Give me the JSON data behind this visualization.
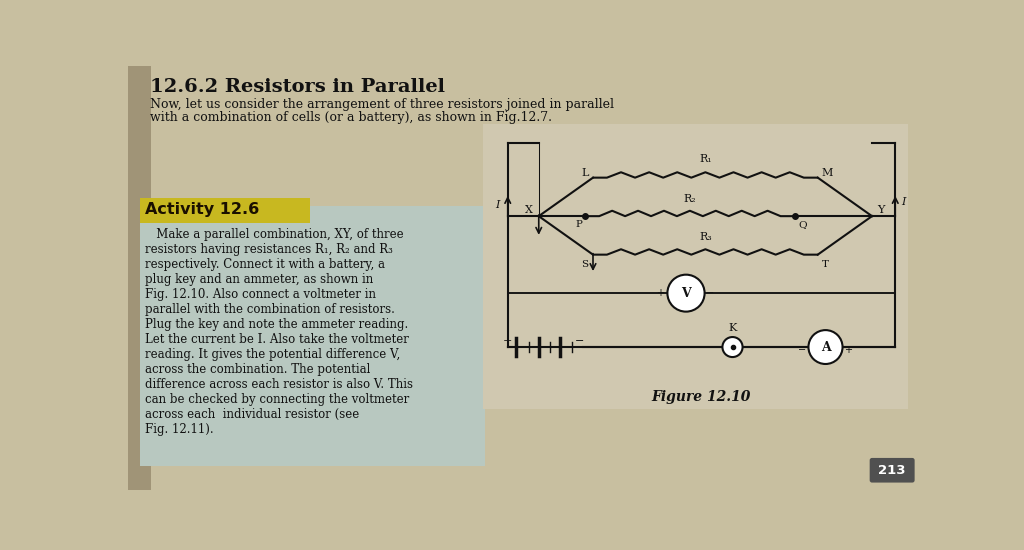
{
  "title": "12.6.2 Resistors in Parallel",
  "paragraph1": "Now, let us consider the arrangement of three resistors joined in parallel",
  "paragraph2": "with a combination of cells (or a battery), as shown in Fig.12.7.",
  "activity_title": "Activity 12.6",
  "activity_lines": [
    "   Make a parallel combination, XY, of three",
    "resistors having resistances R₁, R₂ and R₃",
    "respectively. Connect it with a battery, a",
    "plug key and an ammeter, as shown in",
    "Fig. 12.10. Also connect a voltmeter in",
    "parallel with the combination of resistors.",
    "Plug the key and note the ammeter reading.",
    "Let the current be I. Also take the voltmeter",
    "reading. It gives the potential difference V,",
    "across the combination. The potential",
    "difference across each resistor is also V. This",
    "can be checked by connecting the voltmeter",
    "across each  individual resistor (see",
    "Fig. 12.11)."
  ],
  "figure_caption": "Figure 12.10",
  "page_number": "213",
  "bg_color": "#c8bfa0",
  "text_color": "#111111",
  "activity_header_bg": "#c8b820",
  "activity_body_bg": "#b8c8c0",
  "circuit_bg": "#d8d0b8",
  "dark_shadow": "#8a7a60"
}
